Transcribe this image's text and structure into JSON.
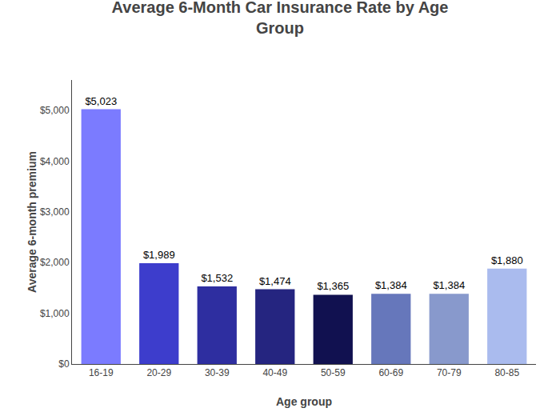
{
  "chart_data": {
    "type": "bar",
    "title": "Average 6-Month Car Insurance Rate by Age\nGroup",
    "xlabel": "Age group",
    "ylabel": "Average 6-month premium",
    "categories": [
      "16-19",
      "20-29",
      "30-39",
      "40-49",
      "50-59",
      "60-69",
      "70-79",
      "80-85"
    ],
    "values": [
      5023,
      1989,
      1532,
      1474,
      1365,
      1384,
      1384,
      1880
    ],
    "value_labels": [
      "$5,023",
      "$1,989",
      "$1,532",
      "$1,474",
      "$1,365",
      "$1,384",
      "$1,384",
      "$1,880"
    ],
    "colors": [
      "#7b7bff",
      "#3d3dcc",
      "#2e2ea0",
      "#252580",
      "#111150",
      "#6677bb",
      "#8899cc",
      "#aabbee"
    ],
    "ylim": [
      0,
      5600
    ],
    "yticks": [
      {
        "value": 0,
        "label": "$0"
      },
      {
        "value": 1000,
        "label": "$1,000"
      },
      {
        "value": 2000,
        "label": "$2,000"
      },
      {
        "value": 3000,
        "label": "$3,000"
      },
      {
        "value": 4000,
        "label": "$4,000"
      },
      {
        "value": 5000,
        "label": "$5,000"
      }
    ],
    "grid": false,
    "data_labels": true
  }
}
